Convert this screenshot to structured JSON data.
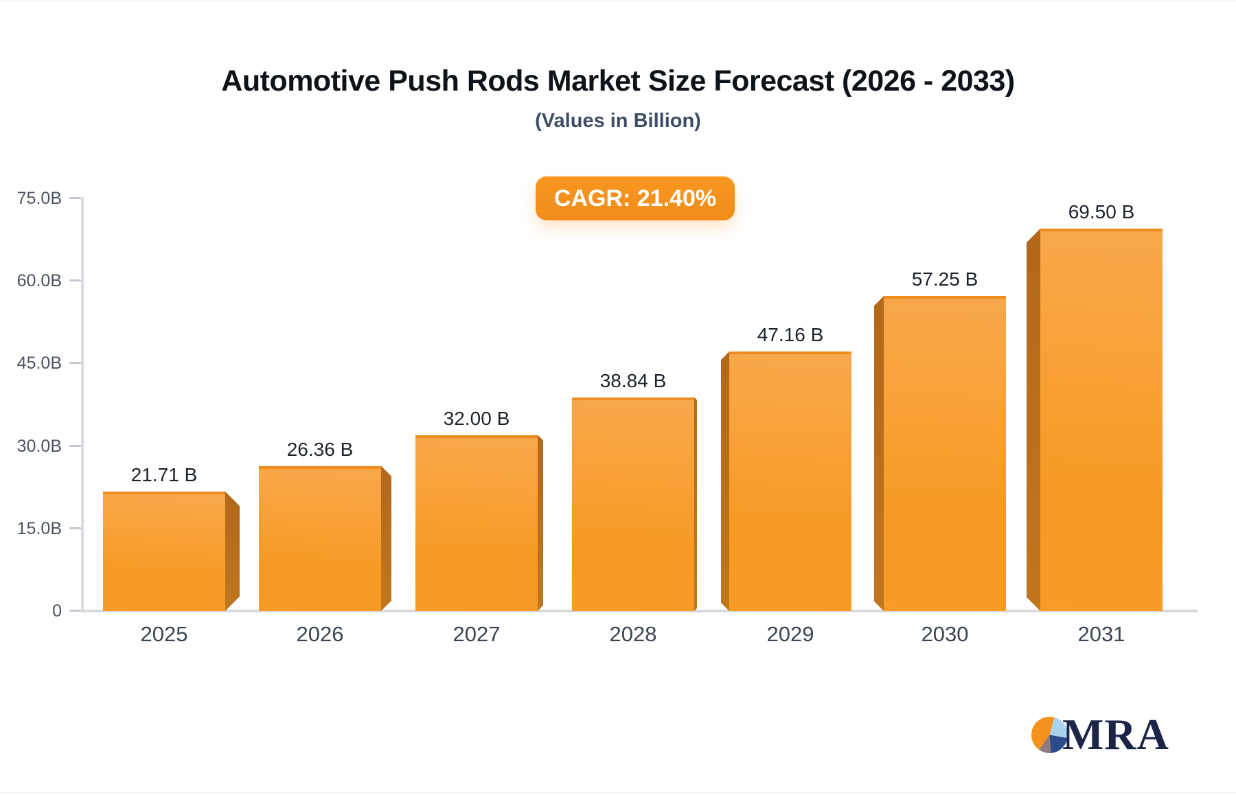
{
  "header": {
    "title": "Automotive Push Rods Market Size Forecast (2026 - 2033)",
    "subtitle": "(Values in Billion)",
    "cagr_badge": "CAGR: 21.40%"
  },
  "chart_data": {
    "type": "bar",
    "title": "Automotive Push Rods Market Size Forecast (2026 - 2033)",
    "subtitle": "(Values in Billion)",
    "annotation": "CAGR: 21.40%",
    "categories": [
      "2025",
      "2026",
      "2027",
      "2028",
      "2029",
      "2030",
      "2031"
    ],
    "values": [
      21.71,
      26.36,
      32.0,
      38.84,
      47.16,
      57.25,
      69.5
    ],
    "bar_labels": [
      "21.71 B",
      "26.36 B",
      "32.00 B",
      "38.84 B",
      "47.16 B",
      "57.25 B",
      "69.50 B"
    ],
    "xlabel": "",
    "ylabel": "",
    "ylim": [
      0,
      75
    ],
    "yticks": [
      {
        "value": 75,
        "label": "75.0B"
      },
      {
        "value": 60,
        "label": "60.0B"
      },
      {
        "value": 45,
        "label": "45.0B"
      },
      {
        "value": 30,
        "label": "30.0B"
      },
      {
        "value": 15,
        "label": "15.0B"
      },
      {
        "value": 0,
        "label": "0"
      }
    ],
    "grid": false,
    "legend": false,
    "style": "3d-perspective-bars",
    "bar_color": "#f79922",
    "bar_shade_color": "#b86d1e",
    "accent_color": "#f6921f"
  },
  "logo": {
    "text": "MRA",
    "icon": "pie-chart-logo-icon"
  }
}
